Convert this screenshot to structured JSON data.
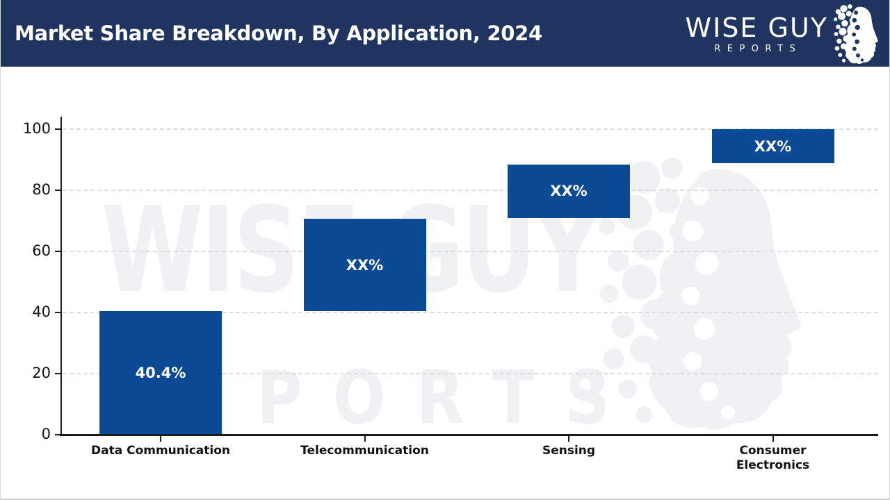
{
  "header": {
    "title": "Market Share Breakdown, By Application, 2024",
    "logo": {
      "name": "WISE GUY",
      "subtitle": "REPORTS"
    }
  },
  "watermark": {
    "line1": "WISE GUY",
    "line2": "REPORTS"
  },
  "colors": {
    "header_bg": "#1f355f",
    "bar": "#0b4a94",
    "gridline": "#dcdcdc",
    "axis": "#1a1a1a",
    "watermark": "#f0f1f3",
    "value_label": "#ffffff"
  },
  "chart_data": {
    "type": "bar",
    "variant": "waterfall",
    "title": "Market Share Breakdown, By Application, 2024",
    "xlabel": "",
    "ylabel": "",
    "ylim": [
      0,
      100
    ],
    "yticks": [
      0,
      20,
      40,
      60,
      80,
      100
    ],
    "grid": "horizontal-dashed",
    "legend": "none",
    "segments": [
      {
        "category": "Data Communication",
        "label": "40.4%",
        "from": 0,
        "to": 40.4
      },
      {
        "category": "Telecommunication",
        "label": "XX%",
        "from": 40.4,
        "to": 70.7
      },
      {
        "category": "Sensing",
        "label": "XX%",
        "from": 70.9,
        "to": 88.5
      },
      {
        "category": "Consumer\nElectronics",
        "label": "XX%",
        "from": 88.9,
        "to": 99.9
      }
    ]
  }
}
